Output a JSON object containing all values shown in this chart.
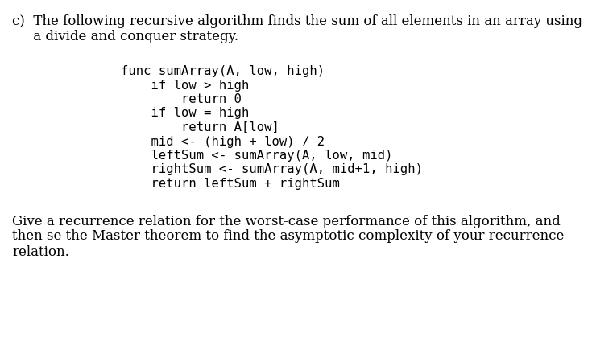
{
  "background_color": "#ffffff",
  "fig_width": 7.35,
  "fig_height": 4.35,
  "dpi": 100,
  "header_text_line1": "c)  The following recursive algorithm finds the sum of all elements in an array using",
  "header_text_line2": "     a divide and conquer strategy.",
  "code_lines": [
    "func sumArray(A, low, high)",
    "    if low > high",
    "        return 0",
    "    if low = high",
    "        return A[low]",
    "    mid <- (high + low) / 2",
    "    leftSum <- sumArray(A, low, mid)",
    "    rightSum <- sumArray(A, mid+1, high)",
    "    return leftSum + rightSum"
  ],
  "footer_lines": [
    "Give a recurrence relation for the worst-case performance of this algorithm, and",
    "then se the Master theorem to find the asymptotic complexity of your recurrence",
    "relation."
  ],
  "header_fontsize": 12.0,
  "code_fontsize": 11.2,
  "footer_fontsize": 12.0
}
